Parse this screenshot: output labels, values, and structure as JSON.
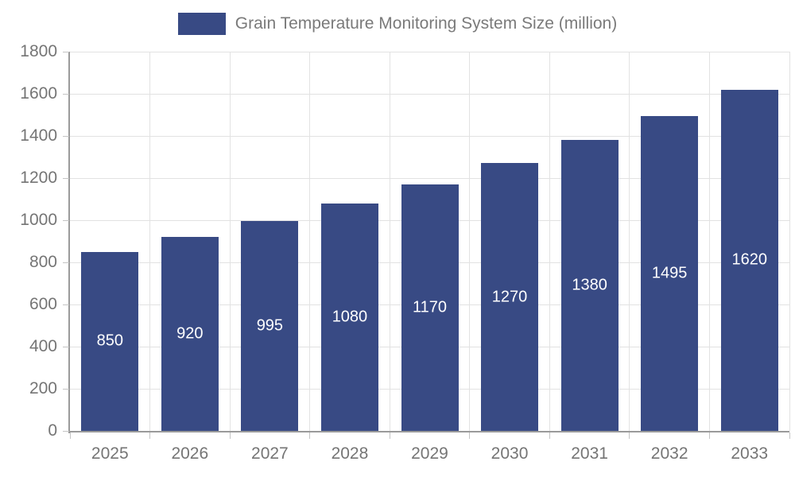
{
  "chart_data": {
    "type": "bar",
    "title": "Grain Temperature Monitoring System Size (million)",
    "categories": [
      "2025",
      "2026",
      "2027",
      "2028",
      "2029",
      "2030",
      "2031",
      "2032",
      "2033"
    ],
    "values": [
      850,
      920,
      995,
      1080,
      1170,
      1270,
      1380,
      1495,
      1620
    ],
    "xlabel": "",
    "ylabel": "",
    "ylim": [
      0,
      1800
    ],
    "yticks": [
      0,
      200,
      400,
      600,
      800,
      1000,
      1200,
      1400,
      1600,
      1800
    ],
    "grid": true,
    "legend_position": "top",
    "bar_color": "#384A84",
    "value_label_color": "#ffffff",
    "axis_text_color": "#757575",
    "legend_text_color": "#7a7a7a",
    "gridline_color": "#e2e2e2",
    "axis_line_color": "#9a9a9a",
    "background_color": "#ffffff"
  }
}
